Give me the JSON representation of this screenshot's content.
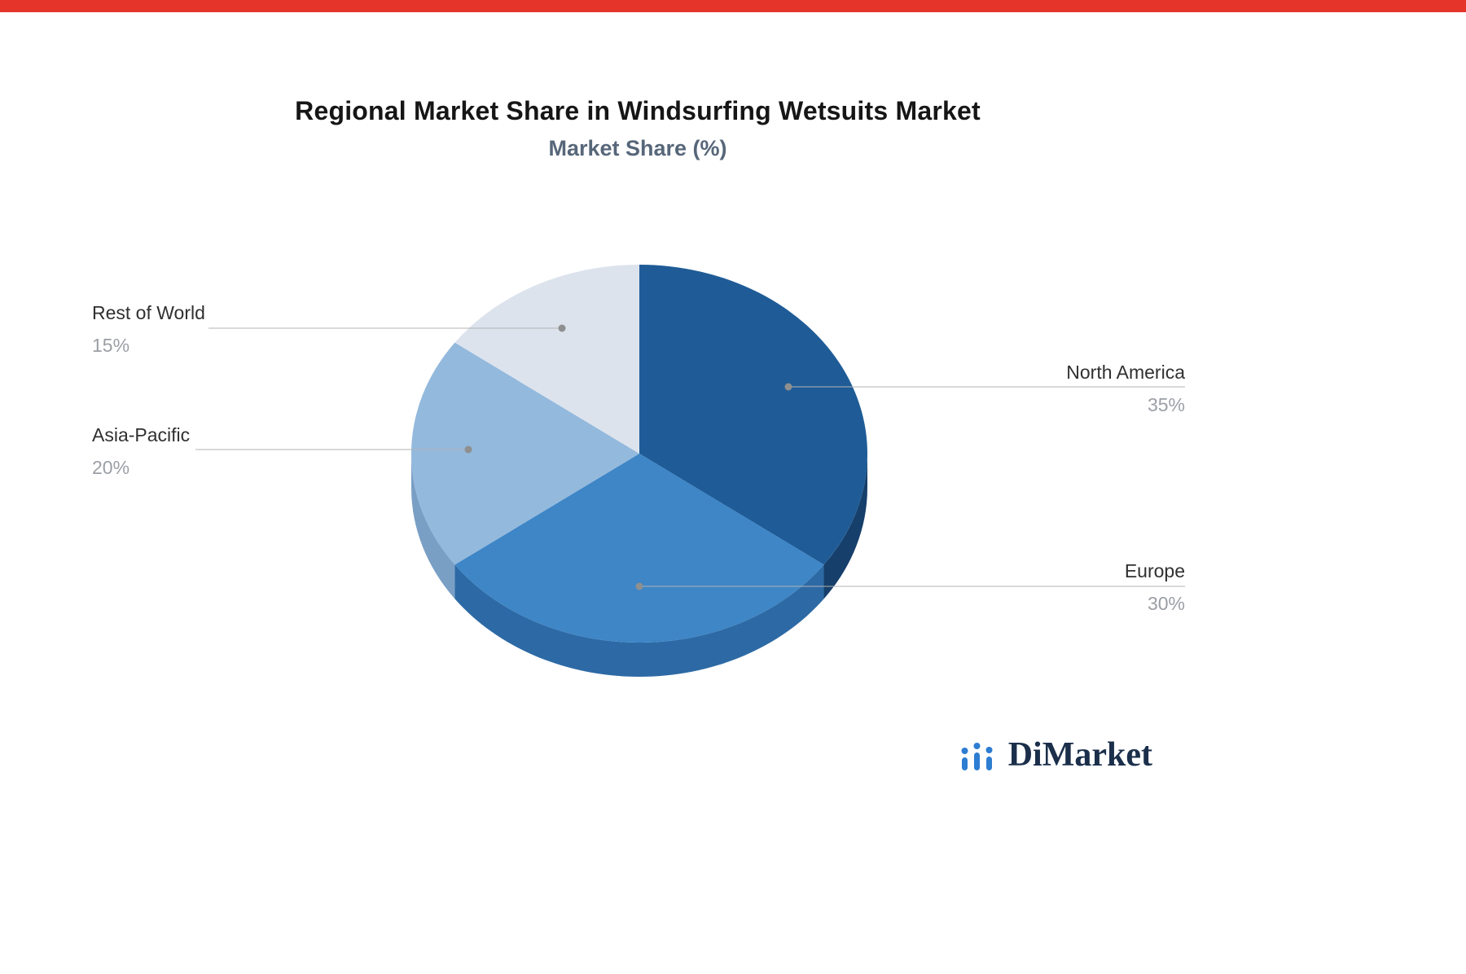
{
  "colors": {
    "top_bar": "#e5352b",
    "background": "#ffffff",
    "title": "#161616",
    "subtitle": "#57677a",
    "label": "#303030",
    "percent": "#9b9fa5",
    "leader_line": "#b3b3b3",
    "leader_dot": "#8f8f8f",
    "logo_text": "#1b2f4b",
    "logo_icon": "#2d7dd2"
  },
  "chart_data": {
    "type": "pie",
    "style": "3d",
    "title": "Regional Market Share in Windsurfing Wetsuits Market",
    "subtitle": "Market Share (%)",
    "unit": "%",
    "start_angle_deg": 0,
    "direction": "clockwise",
    "legend_position": "callout-labels",
    "segments": [
      {
        "label": "North America",
        "value": 35,
        "display": "35%",
        "color": "#1f5c97",
        "side_color": "#163f6b"
      },
      {
        "label": "Europe",
        "value": 30,
        "display": "30%",
        "color": "#3e86c6",
        "side_color": "#2d6aa5"
      },
      {
        "label": "Asia-Pacific",
        "value": 20,
        "display": "20%",
        "color": "#93b9dd",
        "side_color": "#7a9fc5"
      },
      {
        "label": "Rest of World",
        "value": 15,
        "display": "15%",
        "color": "#dce3ed",
        "side_color": "#bcc7d6"
      }
    ]
  },
  "branding": {
    "name": "DiMarket"
  }
}
